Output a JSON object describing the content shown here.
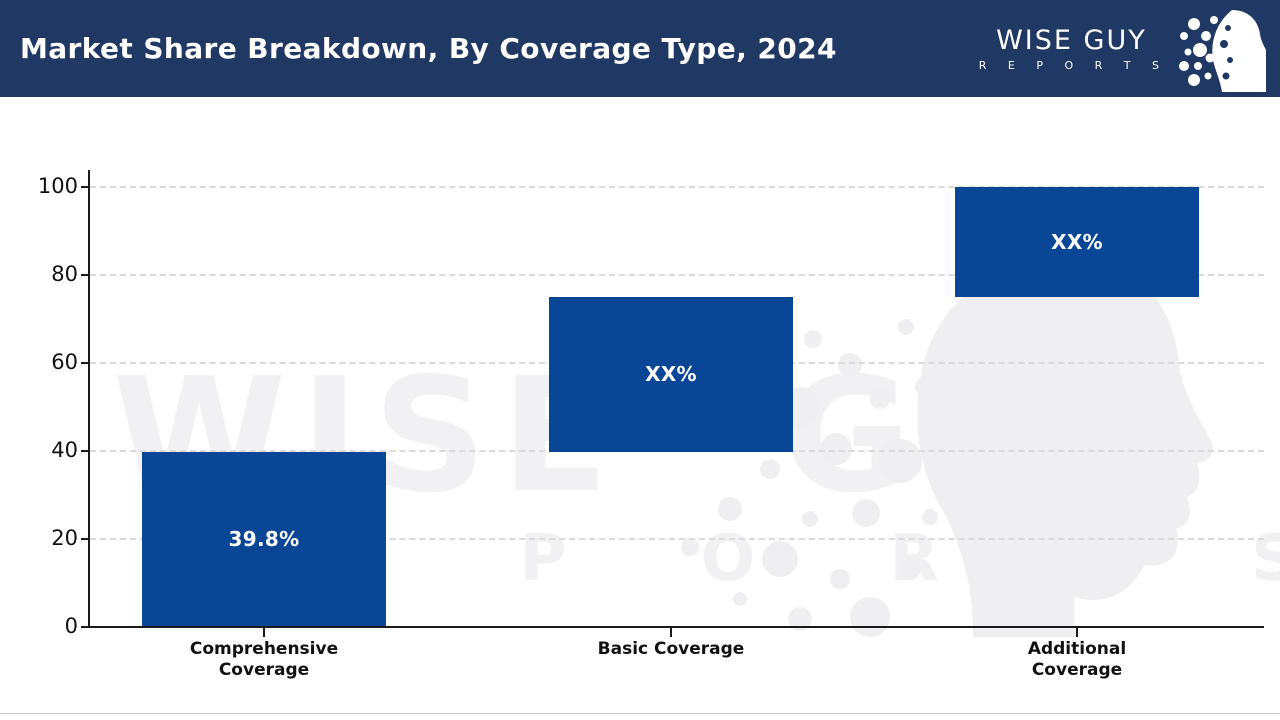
{
  "header": {
    "title": "Market Share Breakdown, By Coverage Type, 2024",
    "logo": {
      "line1": "WISE GUY",
      "line2": "R E P O R T S"
    }
  },
  "watermark": {
    "big": "WISE GUY",
    "small": "R E P O R T S"
  },
  "colors": {
    "header_bg": "#1f3864",
    "bar_blue": "#0a4696",
    "bar_label": "#ffffff",
    "grid": "#dadada",
    "axis": "#1a1a1a",
    "text": "#111111",
    "watermark": "#f1f1f4"
  },
  "chart_data": {
    "type": "bar",
    "variant": "waterfall",
    "title": "Market Share Breakdown, By Coverage Type, 2024",
    "categories": [
      "Comprehensive\nCoverage",
      "Basic Coverage",
      "Additional\nCoverage"
    ],
    "series": [
      {
        "name": "Market share (%)",
        "segments": [
          {
            "category": "Comprehensive Coverage",
            "from": 0,
            "to": 39.8,
            "label": "39.8%"
          },
          {
            "category": "Basic Coverage",
            "from": 39.8,
            "to": 75,
            "label": "XX%"
          },
          {
            "category": "Additional Coverage",
            "from": 75,
            "to": 100,
            "label": "XX%"
          }
        ]
      }
    ],
    "xlabel": "",
    "ylabel": "",
    "ylim": [
      0,
      104
    ],
    "yticks": [
      0,
      20,
      40,
      60,
      80,
      100
    ],
    "grid": "horizontal-dashed",
    "legend": "none"
  }
}
